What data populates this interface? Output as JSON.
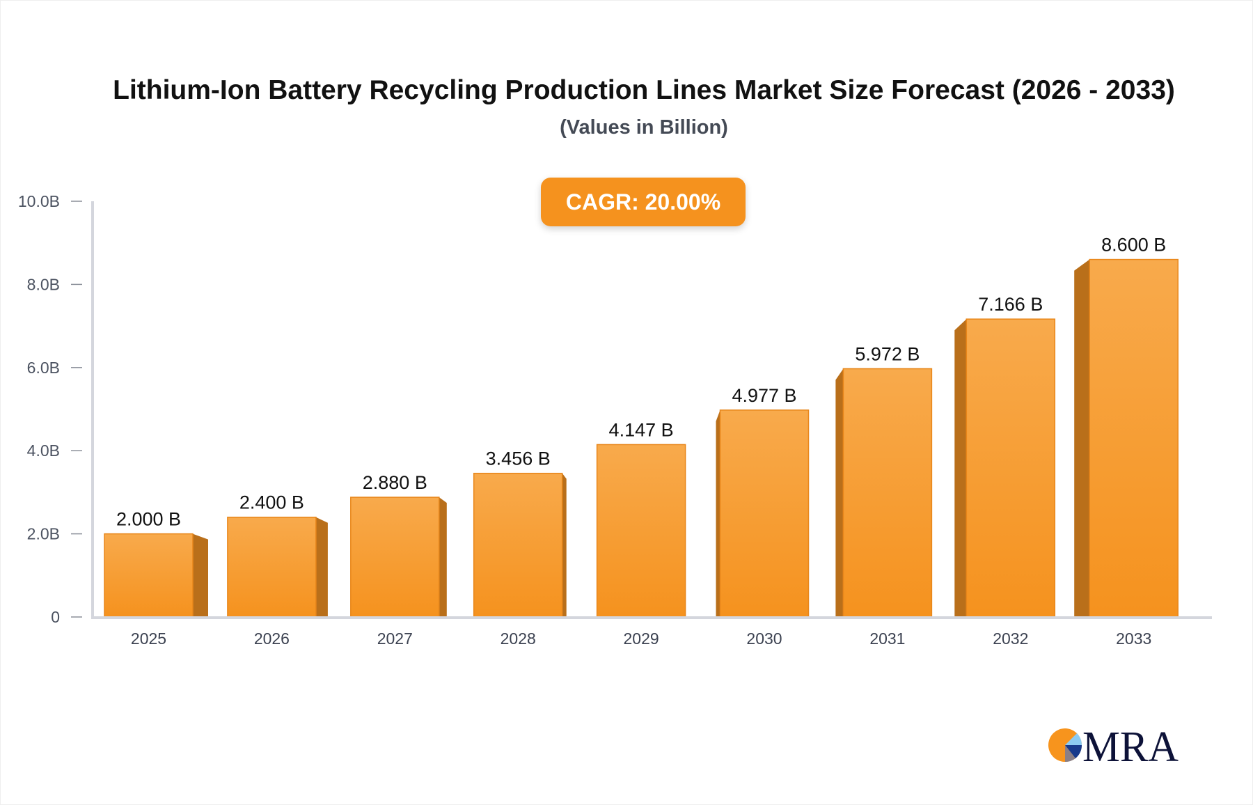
{
  "chart_data": {
    "type": "bar",
    "title": "Lithium-Ion Battery Recycling Production Lines Market Size Forecast (2026 - 2033)",
    "subtitle": "(Values in Billion)",
    "categories": [
      "2025",
      "2026",
      "2027",
      "2028",
      "2029",
      "2030",
      "2031",
      "2032",
      "2033"
    ],
    "values": [
      2.0,
      2.4,
      2.88,
      3.456,
      4.147,
      4.977,
      5.972,
      7.166,
      8.6
    ],
    "data_labels": [
      "2.000 B",
      "2.400 B",
      "2.880 B",
      "3.456 B",
      "4.147 B",
      "4.977 B",
      "5.972 B",
      "7.166 B",
      "8.600 B"
    ],
    "yticks": [
      0,
      2,
      4,
      6,
      8,
      10
    ],
    "ytick_labels": [
      "0",
      "2.0B",
      "4.0B",
      "6.0B",
      "8.0B",
      "10.0B"
    ],
    "ylim": [
      0,
      10
    ],
    "xlabel": "",
    "ylabel": "",
    "grid": false,
    "annotation": "CAGR: 20.00%",
    "colors": {
      "bar_top": "#f8aa4c",
      "bar_bottom": "#f5921e",
      "bar_side": "#b96f1a",
      "axis": "#d4d6dd",
      "badge": "#f5921e"
    }
  },
  "logo": {
    "text": "MRA"
  }
}
